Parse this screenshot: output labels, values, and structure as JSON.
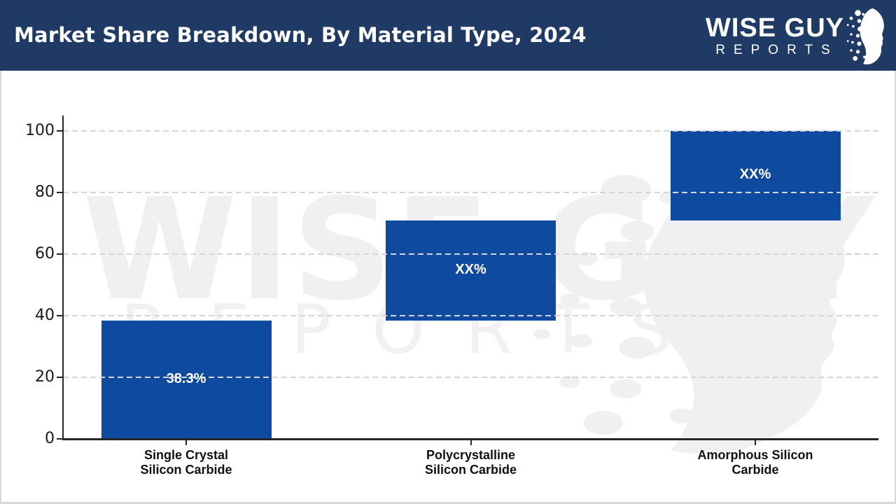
{
  "header": {
    "title": "Market Share Breakdown, By Material Type, 2024",
    "logo": {
      "line1": "WISE GUY",
      "line2": "REPORTS"
    },
    "bg_color": "#203a66"
  },
  "watermark": {
    "line1": "WISE GUY",
    "line2": "REPORTS"
  },
  "chart_data": {
    "type": "bar",
    "subtype": "stacked-waterfall",
    "title": "Market Share Breakdown, By Material Type, 2024",
    "categories": [
      "Single Crystal Silicon Carbide",
      "Polycrystalline Silicon Carbide",
      "Amorphous Silicon Carbide"
    ],
    "category_lines": [
      [
        "Single Crystal",
        "Silicon Carbide"
      ],
      [
        "Polycrystalline",
        "Silicon Carbide"
      ],
      [
        "Amorphous Silicon",
        "Carbide"
      ]
    ],
    "bars": [
      {
        "category": "Single Crystal Silicon Carbide",
        "start": 0,
        "end": 38.3,
        "label": "38.3%"
      },
      {
        "category": "Polycrystalline Silicon Carbide",
        "start": 38.3,
        "end": 71,
        "label": "XX%"
      },
      {
        "category": "Amorphous Silicon Carbide",
        "start": 71,
        "end": 100,
        "label": "XX%"
      }
    ],
    "y_ticks": [
      0,
      20,
      40,
      60,
      80,
      100
    ],
    "ylim": [
      0,
      105
    ],
    "xlabel": "",
    "ylabel": "",
    "legend": "none",
    "grid": "horizontal-dashed",
    "bar_color": "#0d4aa0",
    "axis_color": "#262626",
    "grid_color": "#d4d6da",
    "value_label_color": "#ffffff"
  }
}
